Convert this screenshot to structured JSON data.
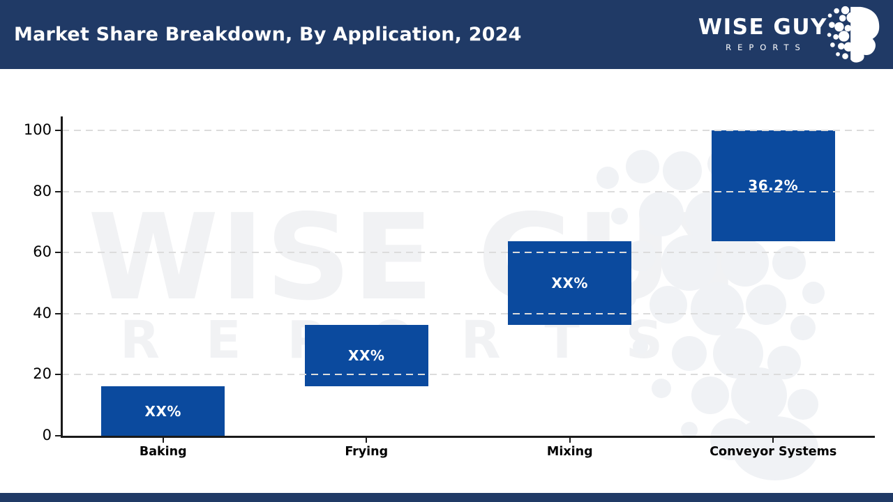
{
  "header": {
    "title": "Market Share Breakdown, By Application, 2024",
    "logo": {
      "wordmark": "WISE GUY",
      "subtext": "REPORTS"
    }
  },
  "watermark": {
    "wordmark": "WISE GUY",
    "subtext": "REPORTS"
  },
  "colors": {
    "header_bg": "#203a66",
    "footer_bg": "#203a66",
    "title_text": "#ffffff",
    "bar": "#0b4a9e",
    "bar_label": "#ffffff",
    "axis": "#1a1a1a",
    "gridline": "#dcdcdc",
    "watermark": "#f1f2f4"
  },
  "chart_data": {
    "type": "bar",
    "subtype": "waterfall",
    "title": "Market Share Breakdown, By Application, 2024",
    "categories": [
      "Baking",
      "Frying",
      "Mixing",
      "Conveyor Systems"
    ],
    "unit": "%",
    "ylim": [
      0,
      100
    ],
    "yticks": [
      0,
      20,
      40,
      60,
      80,
      100
    ],
    "grid": "horizontal-dashed",
    "bars": [
      {
        "category": "Baking",
        "start": 0,
        "end": 16.2,
        "value": 16.2,
        "label": "XX%"
      },
      {
        "category": "Frying",
        "start": 16.2,
        "end": 36.4,
        "value": 20.2,
        "label": "XX%"
      },
      {
        "category": "Mixing",
        "start": 36.4,
        "end": 63.8,
        "value": 27.4,
        "label": "XX%"
      },
      {
        "category": "Conveyor Systems",
        "start": 63.8,
        "end": 100,
        "value": 36.2,
        "label": "36.2%"
      }
    ]
  }
}
